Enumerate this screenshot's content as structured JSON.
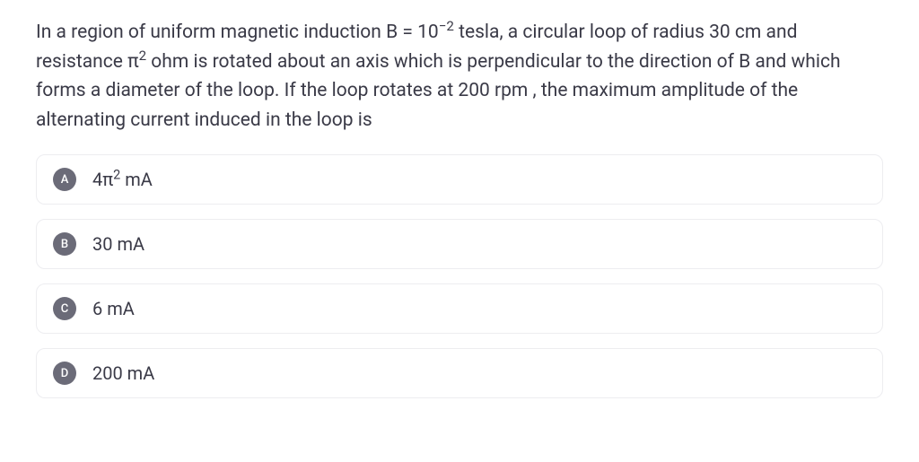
{
  "question": {
    "text_parts": [
      "In a region of uniform magnetic induction B = 10",
      "−2",
      " tesla, a circular loop of radius 30 cm and resistance π",
      "2",
      " ohm is rotated about an axis which is perpendicular to the direction of B and which forms a diameter of the loop. If the loop rotates at 200 rpm , the maximum amplitude of the alternating current induced in the loop is"
    ],
    "text_color": "#3a3a47",
    "font_size": 21
  },
  "options": [
    {
      "letter": "A",
      "prefix": "4π",
      "sup": "2",
      "suffix": " mA"
    },
    {
      "letter": "B",
      "prefix": "30 mA",
      "sup": "",
      "suffix": ""
    },
    {
      "letter": "C",
      "prefix": "6 mA",
      "sup": "",
      "suffix": ""
    },
    {
      "letter": "D",
      "prefix": "200 mA",
      "sup": "",
      "suffix": ""
    }
  ],
  "styling": {
    "option_border_color": "#ededf0",
    "option_border_radius": 10,
    "option_letter_bg": "#6b6b78",
    "option_letter_color": "#ffffff",
    "option_text_color": "#3a3a47",
    "option_text_fontsize": 20,
    "background_color": "#ffffff"
  }
}
